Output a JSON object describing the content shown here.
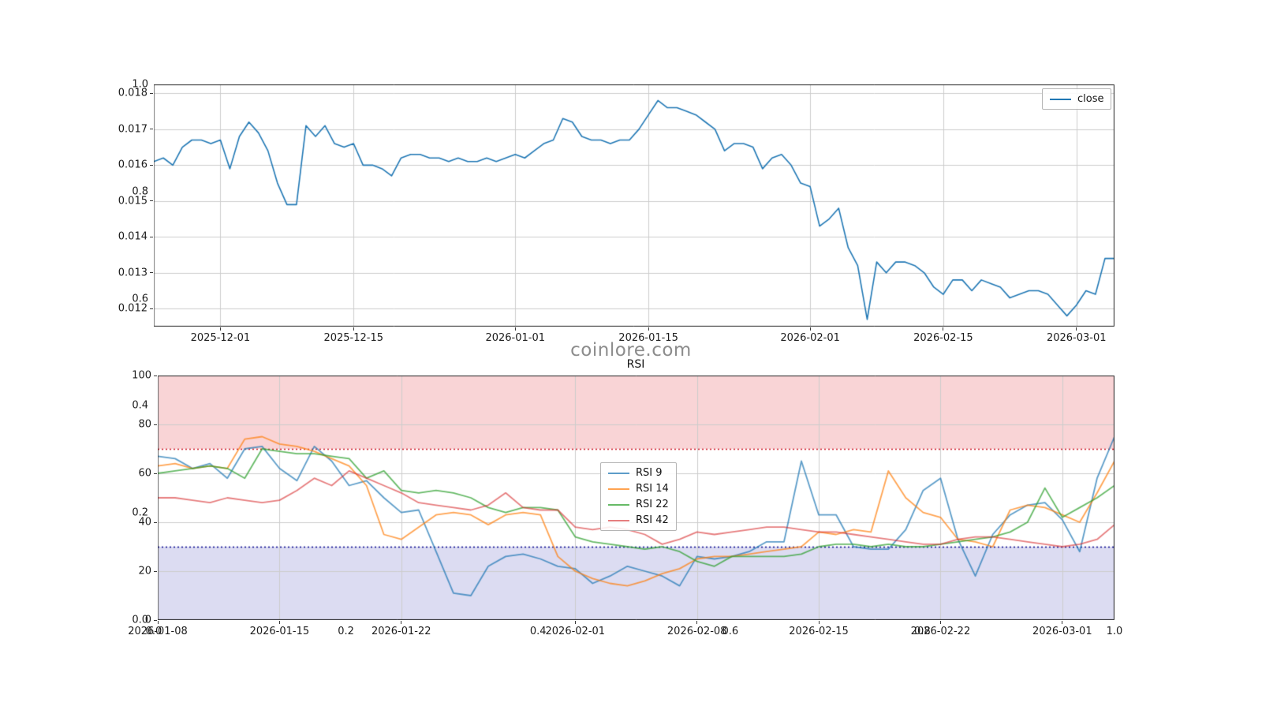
{
  "watermark": "coinlore.com",
  "overlay_axis": {
    "xticks": [
      "0.0",
      "0.2",
      "0.4",
      "0.6",
      "0.8",
      "1.0"
    ],
    "yticks": [
      "0.0",
      "0.2",
      "0.4",
      "0.6",
      "0.8",
      "1.0"
    ]
  },
  "chart_data": [
    {
      "type": "line",
      "title": "",
      "xlabel": "",
      "ylabel": "",
      "grid": true,
      "legend_position": "upper right",
      "ylim": [
        0.0115,
        0.01825
      ],
      "xlim": [
        0,
        101
      ],
      "yticks": [
        {
          "v": 0.012,
          "label": "0.012"
        },
        {
          "v": 0.013,
          "label": "0.013"
        },
        {
          "v": 0.014,
          "label": "0.014"
        },
        {
          "v": 0.015,
          "label": "0.015"
        },
        {
          "v": 0.016,
          "label": "0.016"
        },
        {
          "v": 0.017,
          "label": "0.017"
        },
        {
          "v": 0.018,
          "label": "0.018"
        }
      ],
      "xticks": [
        {
          "v": 7,
          "label": "2025-12-01"
        },
        {
          "v": 21,
          "label": "2025-12-15"
        },
        {
          "v": 38,
          "label": "2026-01-01"
        },
        {
          "v": 52,
          "label": "2026-01-15"
        },
        {
          "v": 69,
          "label": "2026-02-01"
        },
        {
          "v": 83,
          "label": "2026-02-15"
        },
        {
          "v": 97,
          "label": "2026-03-01"
        }
      ],
      "series": [
        {
          "name": "close",
          "color": "#1f77b4",
          "width": 1.6,
          "values": [
            0.0161,
            0.0162,
            0.016,
            0.0165,
            0.0167,
            0.0167,
            0.0166,
            0.0167,
            0.0159,
            0.0168,
            0.0172,
            0.0169,
            0.0164,
            0.0155,
            0.0149,
            0.0149,
            0.0171,
            0.0168,
            0.0171,
            0.0166,
            0.0165,
            0.0166,
            0.016,
            0.016,
            0.0159,
            0.0157,
            0.0162,
            0.0163,
            0.0163,
            0.0162,
            0.0162,
            0.0161,
            0.0162,
            0.0161,
            0.0161,
            0.0162,
            0.0161,
            0.0162,
            0.0163,
            0.0162,
            0.0164,
            0.0166,
            0.0167,
            0.0173,
            0.0172,
            0.0168,
            0.0167,
            0.0167,
            0.0166,
            0.0167,
            0.0167,
            0.017,
            0.0174,
            0.0178,
            0.0176,
            0.0176,
            0.0175,
            0.0174,
            0.0172,
            0.017,
            0.0164,
            0.0166,
            0.0166,
            0.0165,
            0.0159,
            0.0162,
            0.0163,
            0.016,
            0.0155,
            0.0154,
            0.0143,
            0.0145,
            0.0148,
            0.0137,
            0.0132,
            0.0117,
            0.0133,
            0.013,
            0.0133,
            0.0133,
            0.0132,
            0.013,
            0.0126,
            0.0124,
            0.0128,
            0.0128,
            0.0125,
            0.0128,
            0.0127,
            0.0126,
            0.0123,
            0.0124,
            0.0125,
            0.0125,
            0.0124,
            0.0121,
            0.0118,
            0.0121,
            0.0125,
            0.0124,
            0.0134,
            0.0134
          ]
        }
      ]
    },
    {
      "type": "line",
      "title": "RSI",
      "xlabel": "",
      "ylabel": "",
      "grid": true,
      "legend_position": "center",
      "ylim": [
        0,
        100
      ],
      "xlim": [
        0,
        55
      ],
      "yticks": [
        {
          "v": 0,
          "label": "0"
        },
        {
          "v": 20,
          "label": "20"
        },
        {
          "v": 40,
          "label": "40"
        },
        {
          "v": 60,
          "label": "60"
        },
        {
          "v": 80,
          "label": "80"
        },
        {
          "v": 100,
          "label": "100"
        }
      ],
      "xticks": [
        {
          "v": 0,
          "label": "2026-01-08"
        },
        {
          "v": 7,
          "label": "2026-01-15"
        },
        {
          "v": 14,
          "label": "2026-01-22"
        },
        {
          "v": 24,
          "label": "2026-02-01"
        },
        {
          "v": 31,
          "label": "2026-02-08"
        },
        {
          "v": 38,
          "label": "2026-02-15"
        },
        {
          "v": 45,
          "label": "2026-02-22"
        },
        {
          "v": 52,
          "label": "2026-03-01"
        }
      ],
      "bands": [
        {
          "from": 70,
          "to": 100,
          "color": "#f9d4d6",
          "meaning": "overbought"
        },
        {
          "from": 0,
          "to": 30,
          "color": "#dcdcf2",
          "meaning": "oversold"
        }
      ],
      "hlines": [
        {
          "v": 70,
          "color": "#cc1122",
          "style": "dotted"
        },
        {
          "v": 30,
          "color": "#00008b",
          "style": "dotted"
        }
      ],
      "series": [
        {
          "name": "RSI 9",
          "color": "rgba(31,119,180,0.72)",
          "width": 1.8,
          "values": [
            67,
            66,
            62,
            64,
            58,
            70,
            71,
            62,
            57,
            71,
            65,
            55,
            57,
            50,
            44,
            45,
            28,
            11,
            10,
            22,
            26,
            27,
            25,
            22,
            21,
            15,
            18,
            22,
            20,
            18,
            14,
            26,
            25,
            26,
            28,
            32,
            32,
            65,
            43,
            43,
            30,
            29,
            29,
            37,
            53,
            58,
            33,
            18,
            35,
            43,
            47,
            48,
            41,
            28,
            58,
            75
          ]
        },
        {
          "name": "RSI 14",
          "color": "rgba(255,127,14,0.72)",
          "width": 1.8,
          "values": [
            63,
            64,
            62,
            63,
            62,
            74,
            75,
            72,
            71,
            69,
            66,
            63,
            55,
            35,
            33,
            38,
            43,
            44,
            43,
            39,
            43,
            44,
            43,
            26,
            20,
            17,
            15,
            14,
            16,
            19,
            21,
            25,
            26,
            26,
            27,
            28,
            29,
            30,
            36,
            35,
            37,
            36,
            61,
            50,
            44,
            42,
            33,
            32,
            30,
            45,
            47,
            46,
            43,
            40,
            52,
            65
          ]
        },
        {
          "name": "RSI 22",
          "color": "rgba(44,160,44,0.72)",
          "width": 1.8,
          "values": [
            60,
            61,
            62,
            63,
            62,
            58,
            70,
            69,
            68,
            68,
            67,
            66,
            58,
            61,
            53,
            52,
            53,
            52,
            50,
            46,
            44,
            46,
            46,
            45,
            34,
            32,
            31,
            30,
            29,
            30,
            28,
            24,
            22,
            26,
            26,
            26,
            26,
            27,
            30,
            31,
            31,
            30,
            31,
            30,
            30,
            31,
            32,
            33,
            34,
            36,
            40,
            54,
            42,
            46,
            50,
            55
          ]
        },
        {
          "name": "RSI 42",
          "color": "rgba(214,39,40,0.6)",
          "width": 1.8,
          "values": [
            50,
            50,
            49,
            48,
            50,
            49,
            48,
            49,
            53,
            58,
            55,
            61,
            58,
            55,
            52,
            48,
            47,
            46,
            45,
            47,
            52,
            46,
            45,
            45,
            38,
            37,
            38,
            37,
            35,
            31,
            33,
            36,
            35,
            36,
            37,
            38,
            38,
            37,
            36,
            36,
            35,
            34,
            33,
            32,
            31,
            31,
            33,
            34,
            34,
            33,
            32,
            31,
            30,
            31,
            33,
            39
          ]
        }
      ]
    }
  ]
}
